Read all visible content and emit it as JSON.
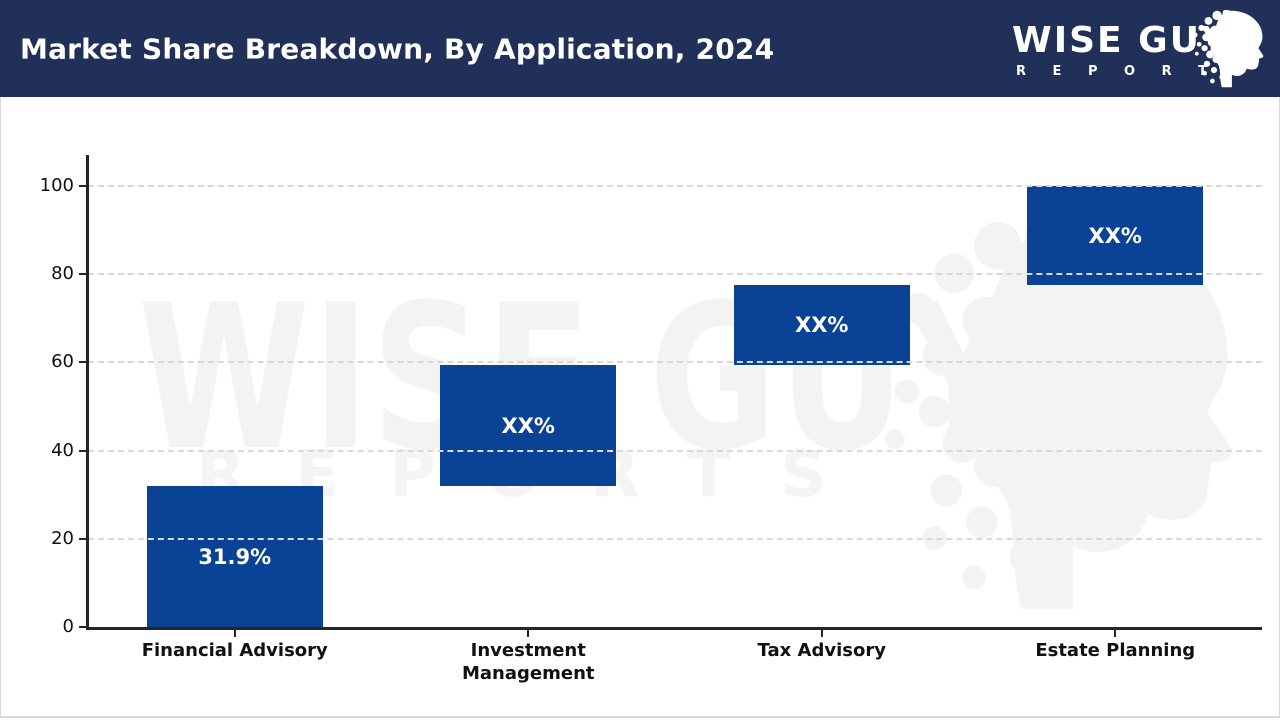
{
  "header": {
    "title": "Market Share Breakdown, By Application, 2024",
    "logo": {
      "line1": "WISE GUY",
      "line2": "R E P O R T S"
    }
  },
  "watermark": {
    "line1": "WISE GUY",
    "line2": "REPORTS"
  },
  "colors": {
    "header_bg": "#203059",
    "bar": "#0a4296",
    "gridline": "#d9d9d9",
    "axis": "#262626",
    "watermark": "#f3f3f3"
  },
  "chart_data": {
    "type": "bar",
    "subtype": "waterfall",
    "title": "Market Share Breakdown, By Application, 2024",
    "categories": [
      "Financial Advisory",
      "Investment\nManagement",
      "Tax Advisory",
      "Estate Planning"
    ],
    "values": [
      31.9,
      27.5,
      18.1,
      22.5
    ],
    "cumulative_start": [
      0,
      31.9,
      59.4,
      77.5
    ],
    "cumulative_end": [
      31.9,
      59.4,
      77.5,
      100
    ],
    "bar_labels": [
      "31.9%",
      "XX%",
      "XX%",
      "XX%"
    ],
    "xlabel": "",
    "ylabel": "",
    "ylim": [
      0,
      100
    ],
    "yticks": [
      0,
      20,
      40,
      60,
      80,
      100
    ],
    "grid": "horizontal dashed, drawn over bars",
    "legend": "none",
    "bar_color": "#0a4296"
  }
}
